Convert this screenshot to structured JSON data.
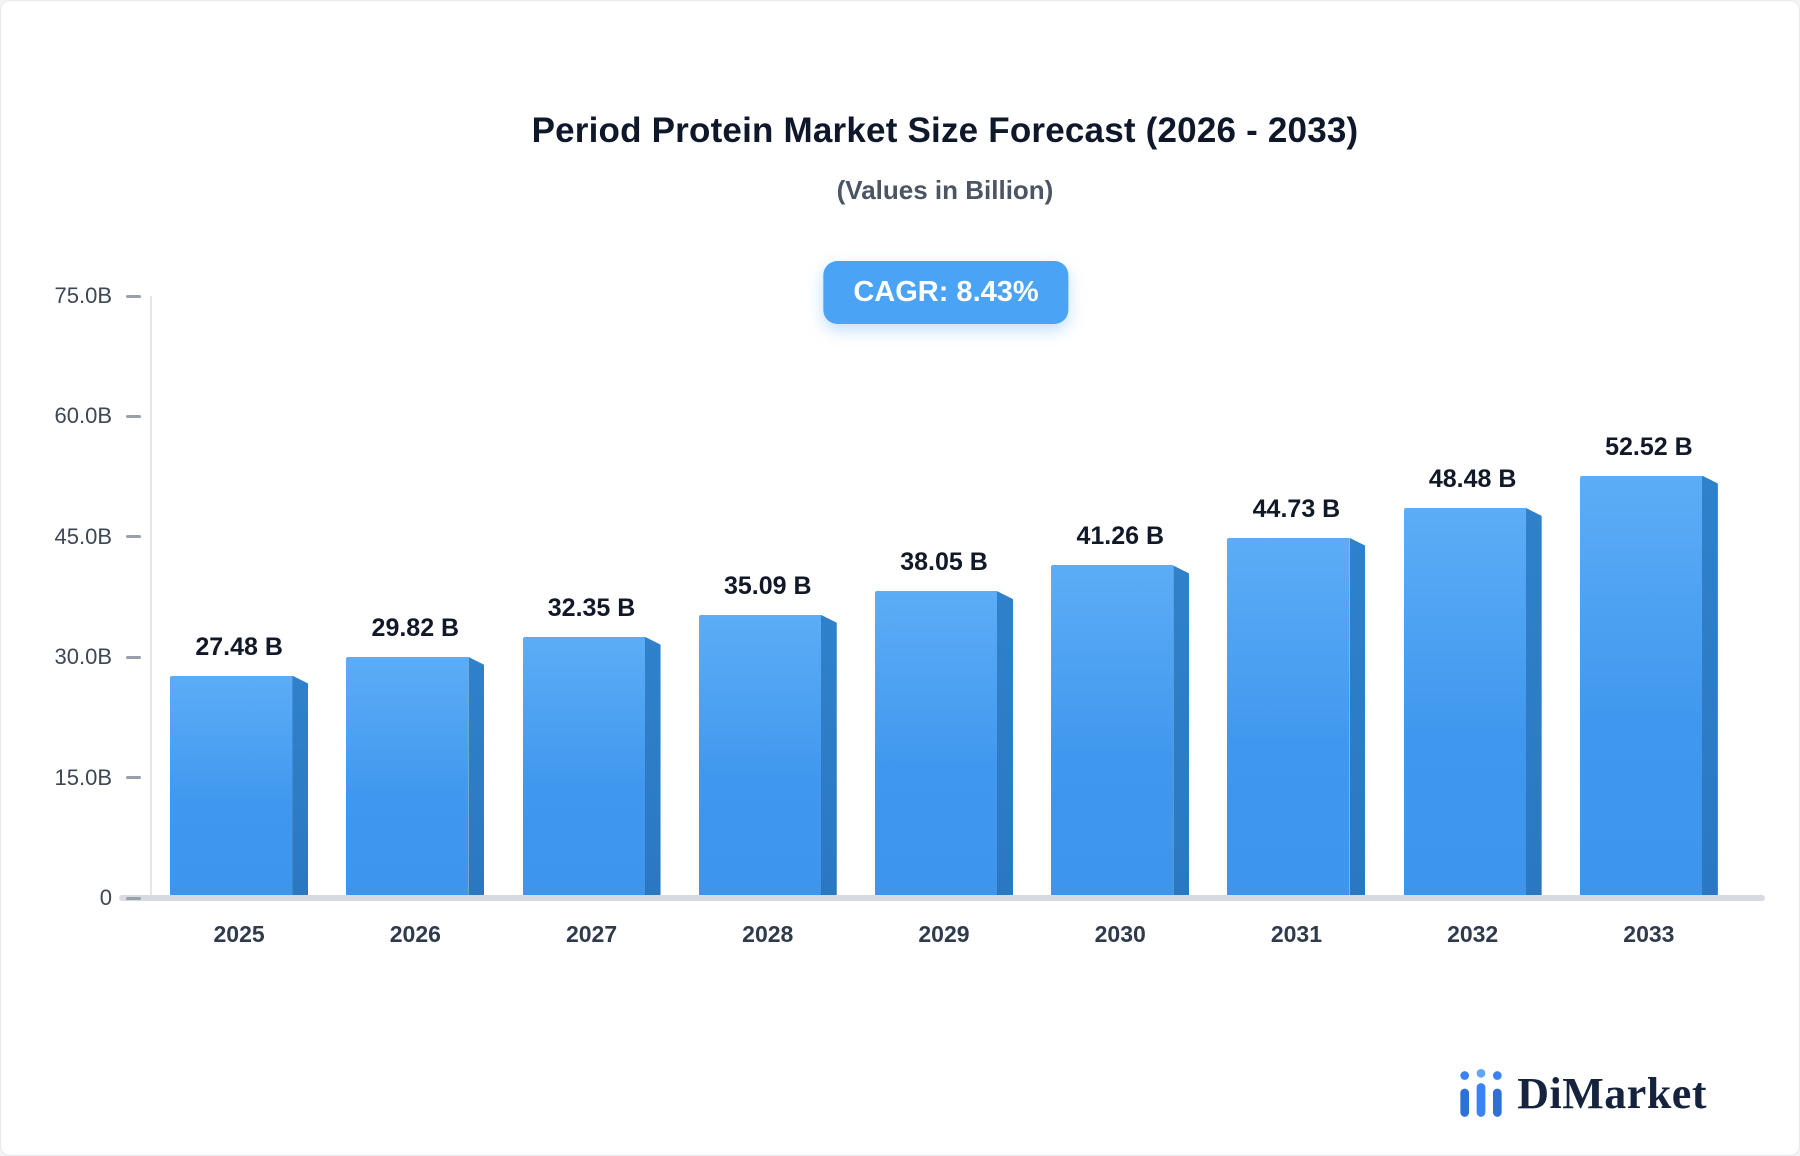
{
  "header": {
    "title": "Period Protein Market Size Forecast (2026 - 2033)",
    "subtitle": "(Values in Billion)",
    "cagr_badge": "CAGR: 8.43%"
  },
  "chart_data": {
    "type": "bar",
    "title": "Period Protein Market Size Forecast (2026 - 2033)",
    "subtitle": "(Values in Billion)",
    "categories": [
      "2025",
      "2026",
      "2027",
      "2028",
      "2029",
      "2030",
      "2031",
      "2032",
      "2033"
    ],
    "values": [
      27.48,
      29.82,
      32.35,
      35.09,
      38.05,
      41.26,
      44.73,
      48.48,
      52.52
    ],
    "value_labels": [
      "27.48 B",
      "29.82 B",
      "32.35 B",
      "35.09 B",
      "38.05 B",
      "41.26 B",
      "44.73 B",
      "48.48 B",
      "52.52 B"
    ],
    "xlabel": "",
    "ylabel": "",
    "ylim": [
      0,
      75
    ],
    "y_ticks": [
      {
        "label": "75.0B",
        "value": 75
      },
      {
        "label": "60.0B",
        "value": 60
      },
      {
        "label": "45.0B",
        "value": 45
      },
      {
        "label": "30.0B",
        "value": 30
      },
      {
        "label": "15.0B",
        "value": 15
      },
      {
        "label": "0",
        "value": 0
      }
    ],
    "grid": false,
    "legend": false,
    "colors": {
      "bar_front_top": "#5cadf6",
      "bar_front_bottom": "#3e95ec",
      "bar_side": "#2d7dc6",
      "badge_background": "#4aa3f5",
      "badge_text": "#ffffff",
      "axis_line": "#d7dbdf",
      "value_label_text": "#111827"
    }
  },
  "logo": {
    "text": "DiMarket",
    "icon": "bar-chart-dots-icon",
    "icon_color": "#3b82f6"
  }
}
